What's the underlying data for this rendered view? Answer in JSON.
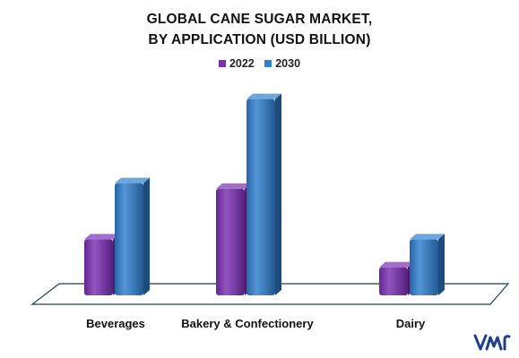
{
  "title_lines": [
    "GLOBAL CANE SUGAR MARKET,",
    "BY APPLICATION (USD BILLION)"
  ],
  "colors": {
    "2022": "#7b2fb5",
    "2030": "#2f7fcf"
  },
  "chart_data": {
    "type": "bar",
    "title": "GLOBAL CANE SUGAR MARKET, BY APPLICATION (USD BILLION)",
    "categories": [
      "Beverages",
      "Bakery & Confectionery",
      "Dairy"
    ],
    "series": [
      {
        "name": "2022",
        "values": [
          2.0,
          3.8,
          1.0
        ]
      },
      {
        "name": "2030",
        "values": [
          4.0,
          7.0,
          2.0
        ]
      }
    ],
    "ylim": [
      0,
      7.5
    ],
    "grid": false,
    "legend": "top-center",
    "style": "3d-columns"
  },
  "logo": {
    "name": "vmr-logo",
    "text": "VMR"
  }
}
